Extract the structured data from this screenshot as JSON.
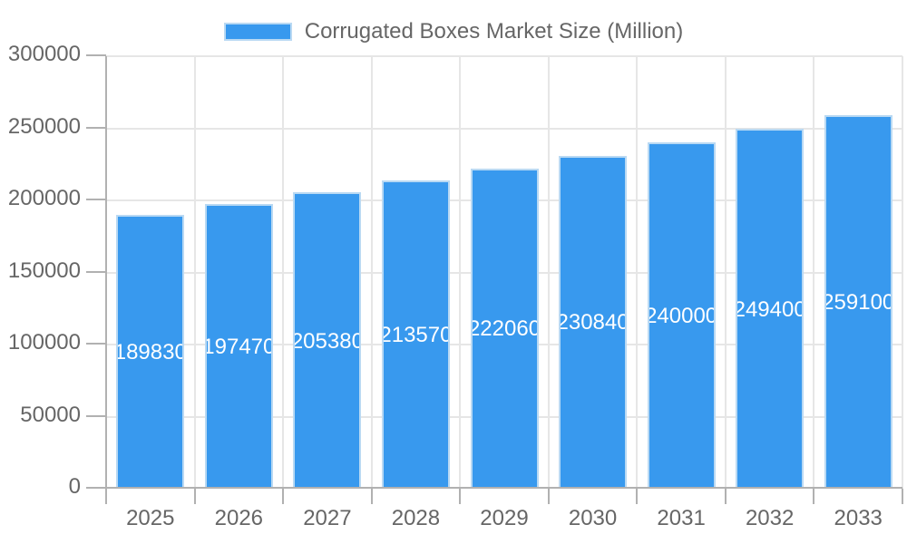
{
  "chart_data": {
    "type": "bar",
    "title": "Corrugated Boxes Market Size (Million)",
    "legend_position": "top",
    "categories": [
      "2025",
      "2026",
      "2027",
      "2028",
      "2029",
      "2030",
      "2031",
      "2032",
      "2033"
    ],
    "series": [
      {
        "name": "Corrugated Boxes Market Size (Million)",
        "values": [
          189830,
          197470,
          205380,
          213570,
          222060,
          230840,
          240000,
          249400,
          259100
        ]
      }
    ],
    "bar_value_labels": [
      "189830",
      "197470",
      "205380",
      "213570",
      "222060",
      "230840",
      "240000",
      "249400",
      "259100"
    ],
    "xlabel": "",
    "ylabel": "",
    "ylim": [
      0,
      300000
    ],
    "y_ticks": [
      0,
      50000,
      100000,
      150000,
      200000,
      250000,
      300000
    ],
    "y_tick_labels": [
      "0",
      "50000",
      "100000",
      "150000",
      "200000",
      "250000",
      "300000"
    ],
    "grid": "on",
    "colors": {
      "bar_fill": "#3899ee",
      "bar_border": "#b9d9f3",
      "grid": "#e6e6e6",
      "axis": "#b1b1b1",
      "text": "#666666",
      "bar_label": "#ffffff"
    }
  }
}
